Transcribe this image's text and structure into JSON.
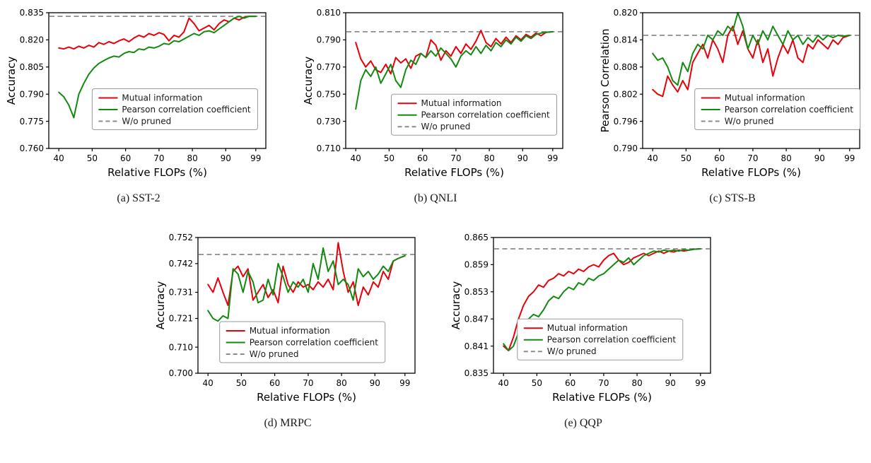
{
  "figure": {
    "legend": {
      "entries": [
        {
          "label": "Mutual information",
          "color": "#e8000b",
          "style": "solid"
        },
        {
          "label": "Pearson correlation coefficient",
          "color": "#128a12",
          "style": "solid"
        },
        {
          "label": "W/o pruned",
          "color": "#8c8c8c",
          "style": "dashed"
        }
      ]
    }
  },
  "chart_data": [
    {
      "id": "sst2",
      "type": "line",
      "caption": "(a) SST-2",
      "xlabel": "Relative FLOPs (%)",
      "ylabel": "Accuracy",
      "xlim": [
        37,
        102
      ],
      "ylim": [
        0.76,
        0.835
      ],
      "xticks": [
        40,
        50,
        60,
        70,
        80,
        90,
        99
      ],
      "yticks": [
        0.76,
        0.775,
        0.79,
        0.805,
        0.82,
        0.835
      ],
      "baseline": 0.833,
      "baseline_label": "W/o pruned",
      "grid": false,
      "legend": {
        "fx": 0.2,
        "fy": 0.56
      },
      "x": [
        40,
        41.5,
        43,
        44.5,
        46,
        47.5,
        49,
        50.5,
        52,
        53.5,
        55,
        56.5,
        58,
        59.5,
        61,
        62.5,
        64,
        65.5,
        67,
        68.5,
        70,
        71.5,
        73,
        74.5,
        76,
        77.5,
        79,
        80.5,
        82,
        83.5,
        85,
        86.5,
        88,
        89.5,
        91,
        92.5,
        94,
        95.5,
        97,
        99
      ],
      "series": [
        {
          "name": "Mutual information",
          "color": "#e8000b",
          "values": [
            0.8155,
            0.815,
            0.816,
            0.815,
            0.8165,
            0.8155,
            0.817,
            0.816,
            0.8185,
            0.8175,
            0.819,
            0.818,
            0.8195,
            0.8205,
            0.819,
            0.821,
            0.8225,
            0.8215,
            0.8235,
            0.8225,
            0.824,
            0.823,
            0.8195,
            0.8225,
            0.8215,
            0.8245,
            0.832,
            0.829,
            0.825,
            0.8265,
            0.828,
            0.8255,
            0.829,
            0.831,
            0.83,
            0.832,
            0.831,
            0.8325,
            0.833,
            0.833
          ]
        },
        {
          "name": "Pearson correlation coefficient",
          "color": "#128a12",
          "values": [
            0.791,
            0.7885,
            0.784,
            0.777,
            0.79,
            0.796,
            0.801,
            0.8045,
            0.807,
            0.8085,
            0.81,
            0.811,
            0.8105,
            0.8125,
            0.8135,
            0.813,
            0.815,
            0.8145,
            0.816,
            0.8155,
            0.8165,
            0.818,
            0.8175,
            0.8195,
            0.819,
            0.8205,
            0.822,
            0.8235,
            0.8225,
            0.8245,
            0.825,
            0.824,
            0.826,
            0.828,
            0.83,
            0.832,
            0.833,
            0.832,
            0.833,
            0.833
          ]
        }
      ]
    },
    {
      "id": "qnli",
      "type": "line",
      "caption": "(b) QNLI",
      "xlabel": "Relative FLOPs (%)",
      "ylabel": "Accuracy",
      "xlim": [
        37,
        102
      ],
      "ylim": [
        0.71,
        0.81
      ],
      "xticks": [
        40,
        50,
        60,
        70,
        80,
        90,
        99
      ],
      "yticks": [
        0.71,
        0.73,
        0.75,
        0.77,
        0.79,
        0.81
      ],
      "baseline": 0.796,
      "baseline_label": "W/o pruned",
      "grid": false,
      "legend": {
        "fx": 0.21,
        "fy": 0.6
      },
      "x": [
        40,
        41.5,
        43,
        44.5,
        46,
        47.5,
        49,
        50.5,
        52,
        53.5,
        55,
        56.5,
        58,
        59.5,
        61,
        62.5,
        64,
        65.5,
        67,
        68.5,
        70,
        71.5,
        73,
        74.5,
        76,
        77.5,
        79,
        80.5,
        82,
        83.5,
        85,
        86.5,
        88,
        89.5,
        91,
        92.5,
        94,
        95.5,
        97,
        99
      ],
      "series": [
        {
          "name": "Mutual information",
          "color": "#e8000b",
          "values": [
            0.788,
            0.776,
            0.77,
            0.7745,
            0.768,
            0.766,
            0.772,
            0.765,
            0.777,
            0.773,
            0.776,
            0.769,
            0.778,
            0.78,
            0.777,
            0.79,
            0.786,
            0.775,
            0.782,
            0.778,
            0.785,
            0.78,
            0.787,
            0.783,
            0.789,
            0.797,
            0.788,
            0.785,
            0.791,
            0.787,
            0.792,
            0.788,
            0.793,
            0.79,
            0.794,
            0.792,
            0.795,
            0.793,
            0.7955,
            0.796
          ]
        },
        {
          "name": "Pearson correlation coefficient",
          "color": "#128a12",
          "values": [
            0.739,
            0.76,
            0.768,
            0.763,
            0.77,
            0.758,
            0.765,
            0.772,
            0.76,
            0.755,
            0.768,
            0.775,
            0.772,
            0.78,
            0.777,
            0.782,
            0.778,
            0.784,
            0.78,
            0.776,
            0.77,
            0.778,
            0.782,
            0.779,
            0.785,
            0.78,
            0.786,
            0.782,
            0.788,
            0.785,
            0.79,
            0.787,
            0.792,
            0.789,
            0.793,
            0.791,
            0.794,
            0.795,
            0.7955,
            0.796
          ]
        }
      ]
    },
    {
      "id": "stsb",
      "type": "line",
      "caption": "(c) STS-B",
      "xlabel": "Relative FLOPs (%)",
      "ylabel": "Pearson Correlation",
      "xlim": [
        37,
        102
      ],
      "ylim": [
        0.79,
        0.82
      ],
      "xticks": [
        40,
        50,
        60,
        70,
        80,
        90,
        99
      ],
      "yticks": [
        0.79,
        0.796,
        0.802,
        0.808,
        0.814,
        0.82
      ],
      "baseline": 0.815,
      "baseline_label": "W/o pruned",
      "grid": false,
      "legend": {
        "fx": 0.24,
        "fy": 0.56
      },
      "x": [
        40,
        41.5,
        43,
        44.5,
        46,
        47.5,
        49,
        50.5,
        52,
        53.5,
        55,
        56.5,
        58,
        59.5,
        61,
        62.5,
        64,
        65.5,
        67,
        68.5,
        70,
        71.5,
        73,
        74.5,
        76,
        77.5,
        79,
        80.5,
        82,
        83.5,
        85,
        86.5,
        88,
        89.5,
        91,
        92.5,
        94,
        95.5,
        97,
        99
      ],
      "series": [
        {
          "name": "Mutual information",
          "color": "#e8000b",
          "values": [
            0.803,
            0.802,
            0.8015,
            0.806,
            0.804,
            0.8025,
            0.805,
            0.803,
            0.809,
            0.811,
            0.813,
            0.81,
            0.814,
            0.812,
            0.809,
            0.815,
            0.817,
            0.813,
            0.816,
            0.812,
            0.81,
            0.814,
            0.809,
            0.812,
            0.806,
            0.81,
            0.813,
            0.811,
            0.814,
            0.81,
            0.809,
            0.813,
            0.812,
            0.814,
            0.813,
            0.812,
            0.814,
            0.813,
            0.8145,
            0.815
          ]
        },
        {
          "name": "Pearson correlation coefficient",
          "color": "#128a12",
          "values": [
            0.811,
            0.8095,
            0.81,
            0.808,
            0.805,
            0.804,
            0.809,
            0.807,
            0.811,
            0.813,
            0.812,
            0.815,
            0.814,
            0.816,
            0.815,
            0.817,
            0.816,
            0.82,
            0.817,
            0.812,
            0.815,
            0.813,
            0.816,
            0.814,
            0.817,
            0.815,
            0.813,
            0.816,
            0.814,
            0.815,
            0.813,
            0.8145,
            0.8135,
            0.815,
            0.814,
            0.815,
            0.8145,
            0.815,
            0.8148,
            0.815
          ]
        }
      ]
    },
    {
      "id": "mrpc",
      "type": "line",
      "caption": "(d) MRPC",
      "xlabel": "Relative FLOPs (%)",
      "ylabel": "Accuracy",
      "xlim": [
        37,
        102
      ],
      "ylim": [
        0.7,
        0.752
      ],
      "xticks": [
        40,
        50,
        60,
        70,
        80,
        90,
        99
      ],
      "yticks": [
        0.7,
        0.71,
        0.721,
        0.731,
        0.742,
        0.752
      ],
      "baseline": 0.7455,
      "baseline_label": "W/o pruned",
      "grid": false,
      "legend": {
        "fx": 0.1,
        "fy": 0.62
      },
      "x": [
        40,
        41.5,
        43,
        44.5,
        46,
        47.5,
        49,
        50.5,
        52,
        53.5,
        55,
        56.5,
        58,
        59.5,
        61,
        62.5,
        64,
        65.5,
        67,
        68.5,
        70,
        71.5,
        73,
        74.5,
        76,
        77.5,
        79,
        80.5,
        82,
        83.5,
        85,
        86.5,
        88,
        89.5,
        91,
        92.5,
        94,
        95.5,
        97,
        99
      ],
      "series": [
        {
          "name": "Mutual information",
          "color": "#e8000b",
          "values": [
            0.734,
            0.731,
            0.7365,
            0.731,
            0.726,
            0.739,
            0.741,
            0.737,
            0.74,
            0.728,
            0.731,
            0.734,
            0.729,
            0.732,
            0.727,
            0.741,
            0.734,
            0.731,
            0.735,
            0.733,
            0.734,
            0.732,
            0.735,
            0.733,
            0.736,
            0.732,
            0.75,
            0.739,
            0.731,
            0.735,
            0.726,
            0.733,
            0.73,
            0.735,
            0.733,
            0.739,
            0.736,
            0.743,
            0.744,
            0.745
          ]
        },
        {
          "name": "Pearson correlation coefficient",
          "color": "#128a12",
          "values": [
            0.724,
            0.721,
            0.72,
            0.722,
            0.721,
            0.74,
            0.738,
            0.731,
            0.739,
            0.735,
            0.727,
            0.728,
            0.736,
            0.73,
            0.742,
            0.737,
            0.731,
            0.735,
            0.733,
            0.736,
            0.731,
            0.742,
            0.736,
            0.748,
            0.739,
            0.743,
            0.734,
            0.736,
            0.734,
            0.728,
            0.74,
            0.737,
            0.739,
            0.736,
            0.738,
            0.741,
            0.739,
            0.743,
            0.744,
            0.745
          ]
        }
      ]
    },
    {
      "id": "qqp",
      "type": "line",
      "caption": "(e) QQP",
      "xlabel": "Relative FLOPs (%)",
      "ylabel": "Accuracy",
      "xlim": [
        37,
        102
      ],
      "ylim": [
        0.835,
        0.865
      ],
      "xticks": [
        40,
        50,
        60,
        70,
        80,
        90,
        99
      ],
      "yticks": [
        0.835,
        0.841,
        0.847,
        0.853,
        0.859,
        0.865
      ],
      "baseline": 0.8625,
      "baseline_label": "W/o pruned",
      "grid": false,
      "legend": {
        "fx": 0.11,
        "fy": 0.6
      },
      "x": [
        40,
        41.5,
        43,
        44.5,
        46,
        47.5,
        49,
        50.5,
        52,
        53.5,
        55,
        56.5,
        58,
        59.5,
        61,
        62.5,
        64,
        65.5,
        67,
        68.5,
        70,
        71.5,
        73,
        74.5,
        76,
        77.5,
        79,
        80.5,
        82,
        83.5,
        85,
        86.5,
        88,
        89.5,
        91,
        92.5,
        94,
        95.5,
        97,
        99
      ],
      "series": [
        {
          "name": "Mutual information",
          "color": "#e8000b",
          "values": [
            0.841,
            0.84,
            0.843,
            0.847,
            0.85,
            0.852,
            0.853,
            0.8545,
            0.854,
            0.8555,
            0.856,
            0.857,
            0.8565,
            0.8575,
            0.857,
            0.858,
            0.8575,
            0.8585,
            0.859,
            0.8585,
            0.86,
            0.861,
            0.8615,
            0.86,
            0.859,
            0.8595,
            0.8605,
            0.861,
            0.8615,
            0.861,
            0.8615,
            0.862,
            0.8615,
            0.862,
            0.8618,
            0.8622,
            0.862,
            0.8622,
            0.8624,
            0.8625
          ]
        },
        {
          "name": "Pearson correlation coefficient",
          "color": "#128a12",
          "values": [
            0.8415,
            0.84,
            0.841,
            0.844,
            0.846,
            0.847,
            0.848,
            0.8475,
            0.849,
            0.851,
            0.852,
            0.8515,
            0.853,
            0.854,
            0.8535,
            0.855,
            0.8545,
            0.856,
            0.8555,
            0.8565,
            0.857,
            0.858,
            0.859,
            0.86,
            0.8595,
            0.8605,
            0.859,
            0.86,
            0.861,
            0.8615,
            0.862,
            0.8618,
            0.8622,
            0.862,
            0.8622,
            0.862,
            0.8623,
            0.8622,
            0.8624,
            0.8625
          ]
        }
      ]
    }
  ]
}
